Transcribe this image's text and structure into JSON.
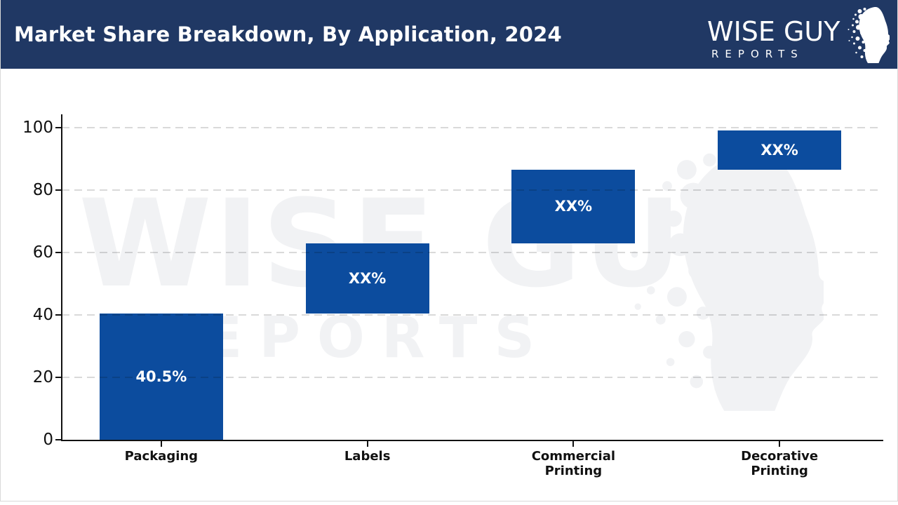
{
  "header": {
    "title": "Market Share Breakdown, By Application, 2024",
    "background_color": "#203864",
    "logo": {
      "line1": "WISE GUY",
      "line2": "REPORTS"
    }
  },
  "watermark": {
    "line1": "WISE GUY",
    "line2": "REPORTS"
  },
  "chart_data": {
    "type": "bar",
    "subtype": "waterfall",
    "title": "Market Share Breakdown, By Application, 2024",
    "categories": [
      "Packaging",
      "Labels",
      "Commercial Printing",
      "Decorative Printing"
    ],
    "category_lines": [
      [
        "Packaging"
      ],
      [
        "Labels"
      ],
      [
        "Commercial",
        "Printing"
      ],
      [
        "Decorative",
        "Printing"
      ]
    ],
    "bars": [
      {
        "category": "Packaging",
        "start": 0,
        "end": 40.5,
        "label": "40.5%"
      },
      {
        "category": "Labels",
        "start": 40.5,
        "end": 63,
        "label": "XX%"
      },
      {
        "category": "Commercial Printing",
        "start": 63,
        "end": 86.5,
        "label": "XX%"
      },
      {
        "category": "Decorative Printing",
        "start": 86.5,
        "end": 99,
        "label": "XX%"
      }
    ],
    "yticks": [
      0,
      20,
      40,
      60,
      80,
      100
    ],
    "ylim": [
      0,
      104
    ],
    "xlabel": "",
    "ylabel": "",
    "grid": "dashed-horizontal",
    "legend": "none",
    "bar_color": "#0c4c9e",
    "bar_label_color": "#ffffff"
  }
}
